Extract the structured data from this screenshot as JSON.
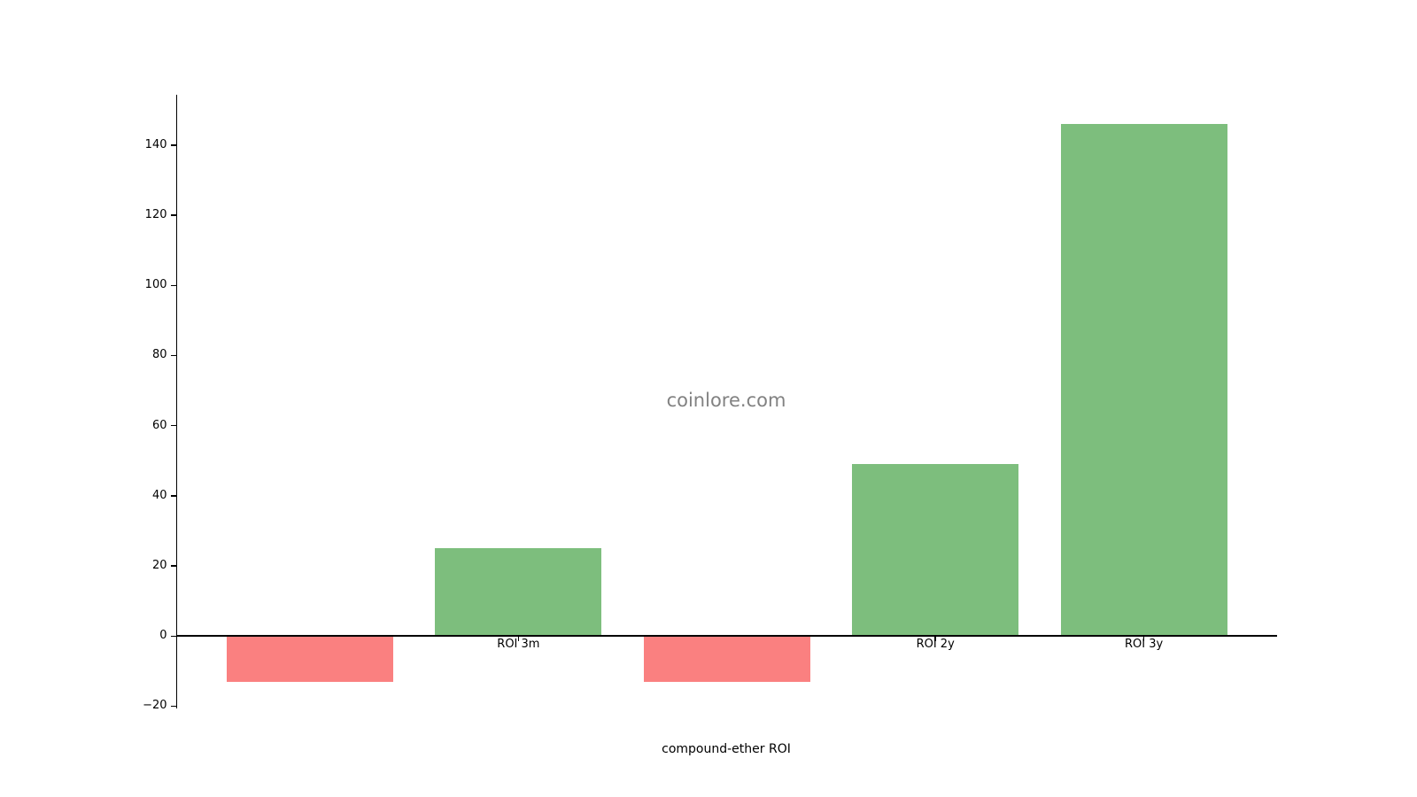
{
  "watermark": "coinlore.com",
  "chart_data": {
    "type": "bar",
    "title": "",
    "xlabel": "compound-ether ROI",
    "ylabel": "",
    "categories": [
      "",
      "ROI 3m",
      "",
      "ROI 2y",
      "ROI 3y"
    ],
    "values": [
      -13,
      25,
      -13,
      49,
      146
    ],
    "yticks": [
      140,
      120,
      100,
      80,
      60,
      40,
      20,
      0,
      -20
    ],
    "ylim": [
      -21,
      154
    ],
    "grid": false,
    "legend_position": "none",
    "colors": {
      "positive_bar": "#7dbe7d",
      "negative_bar": "#fa8080",
      "axis": "#000000",
      "text": "#000000",
      "watermark": "#828282"
    }
  }
}
